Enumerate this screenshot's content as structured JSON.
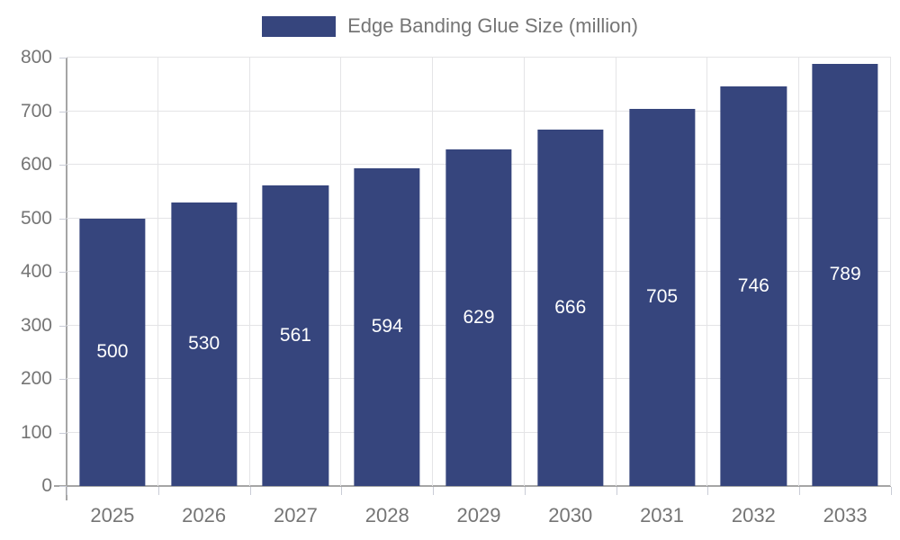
{
  "legend": {
    "label": "Edge Banding Glue Size (million)"
  },
  "chart_data": {
    "type": "bar",
    "title": "Edge Banding Glue Size (million)",
    "categories": [
      "2025",
      "2026",
      "2027",
      "2028",
      "2029",
      "2030",
      "2031",
      "2032",
      "2033"
    ],
    "values": [
      500,
      530,
      561,
      594,
      629,
      666,
      705,
      746,
      789
    ],
    "xlabel": "",
    "ylabel": "",
    "ylim": [
      0,
      800
    ],
    "ytick_step": 100,
    "ytick_labels": [
      "0",
      "100",
      "200",
      "300",
      "400",
      "500",
      "600",
      "700",
      "800"
    ],
    "grid": true,
    "legend_position": "top",
    "bar_color": "#36457D",
    "bar_label_color": "#ffffff",
    "axis_text_color": "#757575",
    "gridline_color": "#e4e4e6",
    "axis_line_color": "#a5a5a5"
  }
}
